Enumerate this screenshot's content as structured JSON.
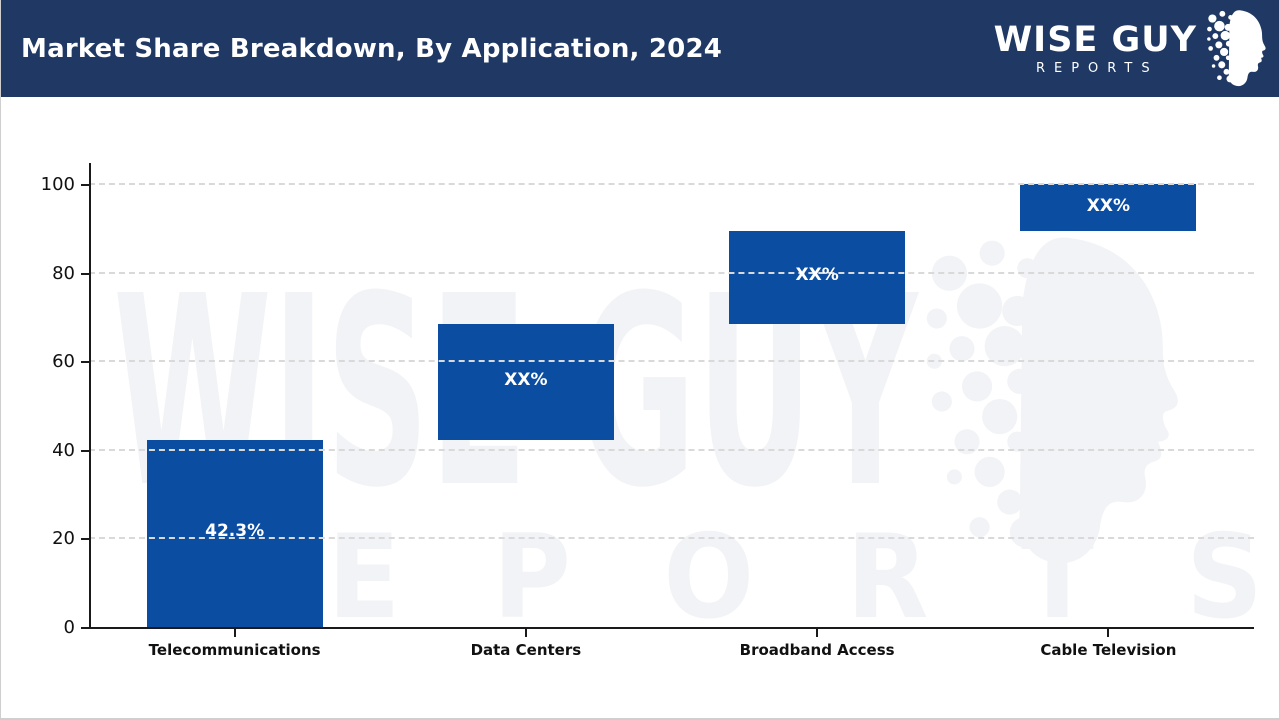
{
  "header": {
    "title": "Market Share Breakdown, By Application, 2024",
    "logo": {
      "line1": "WISE GUY",
      "line2": "REPORTS"
    }
  },
  "watermark": {
    "line1": "WISE GUY",
    "line2": "R E P O R T S"
  },
  "colors": {
    "header_bg": "#1F3864",
    "bar": "#0B4DA1",
    "gridline": "#D9D9D9",
    "watermark": "#F2F3F6",
    "axis": "#1A1A1A",
    "bar_label": "#FFFFFF"
  },
  "chart_data": {
    "type": "bar",
    "subtype": "waterfall",
    "title": "Market Share Breakdown, By Application, 2024",
    "categories": [
      "Telecommunications",
      "Data Centers",
      "Broadband Access",
      "Cable Television"
    ],
    "segments": [
      {
        "category": "Telecommunications",
        "start": 0,
        "end": 42.3,
        "label": "42.3%"
      },
      {
        "category": "Data Centers",
        "start": 42.3,
        "end": 68.5,
        "label": "XX%"
      },
      {
        "category": "Broadband Access",
        "start": 68.5,
        "end": 89.3,
        "label": "XX%"
      },
      {
        "category": "Cable Television",
        "start": 89.3,
        "end": 100,
        "label": "XX%"
      }
    ],
    "yticks": [
      0,
      20,
      40,
      60,
      80,
      100
    ],
    "ylim": [
      0,
      105
    ],
    "xlabel": "",
    "ylabel": "",
    "grid": "horizontal-dashed",
    "grid_on_top_of_bars": true,
    "legend": "none"
  }
}
